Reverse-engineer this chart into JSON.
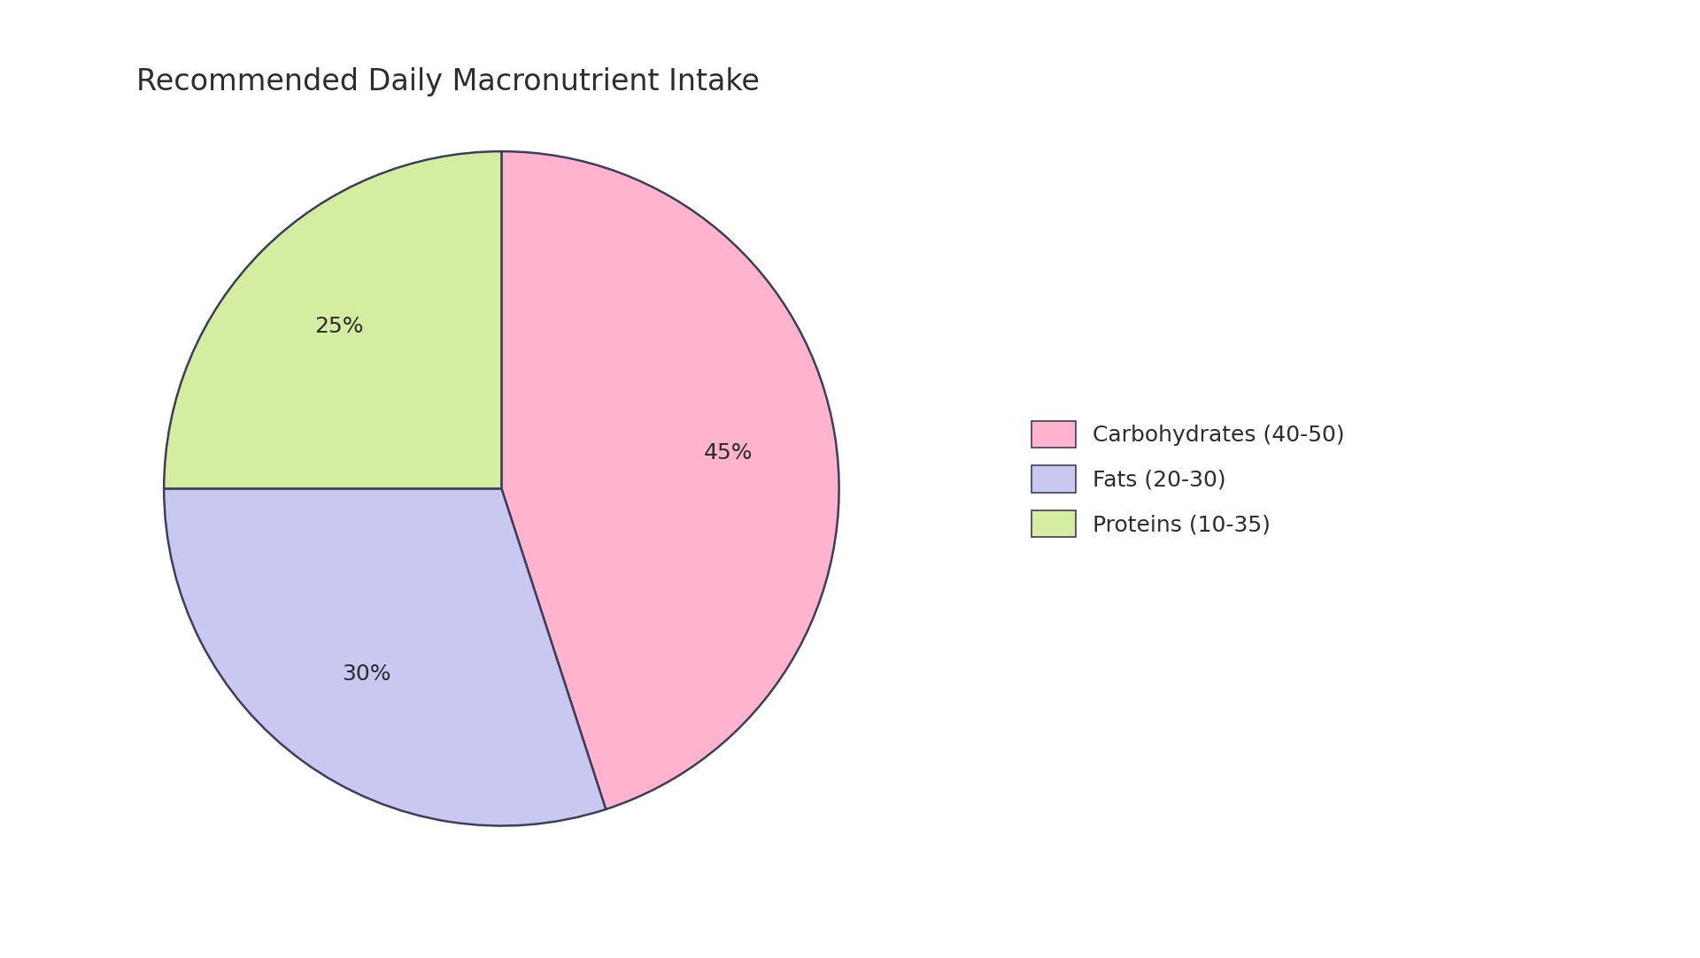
{
  "title": "Recommended Daily Macronutrient Intake",
  "title_fontsize": 24,
  "title_color": "#2d2d2d",
  "slices": [
    45,
    30,
    25
  ],
  "labels": [
    "Carbohydrates (40-50)",
    "Fats (20-30)",
    "Proteins (10-35)"
  ],
  "colors": [
    "#FFB3CC",
    "#C8C8F0",
    "#D4EDA0"
  ],
  "edge_color": "#3d3d5c",
  "edge_width": 1.8,
  "start_angle": 90,
  "background_color": "#ffffff",
  "autopct_fontsize": 18,
  "autopct_color": "#2d2d2d",
  "legend_fontsize": 18,
  "pct_distance": 0.68
}
